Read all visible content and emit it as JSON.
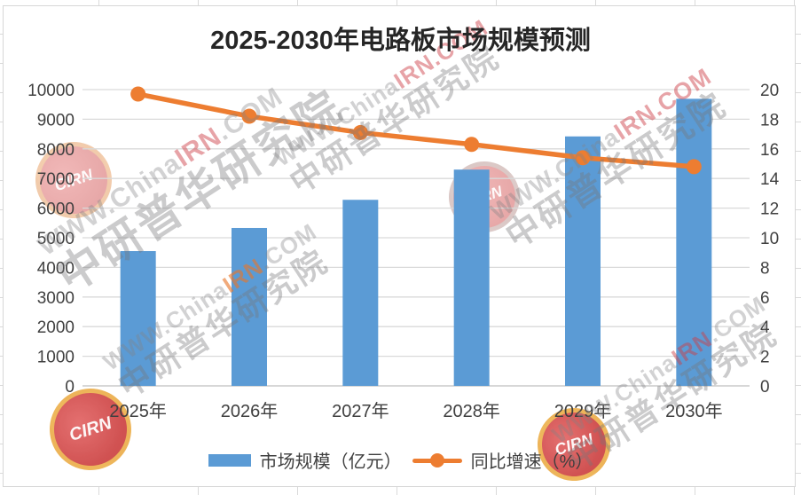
{
  "chart_data": {
    "type": "bar+line",
    "title": "2025-2030年电路板市场规模预测",
    "categories": [
      "2025年",
      "2026年",
      "2027年",
      "2028年",
      "2029年",
      "2030年"
    ],
    "series": [
      {
        "name": "市场规模（亿元）",
        "type": "bar",
        "axis": "left",
        "color": "#5B9BD5",
        "values": [
          4550,
          5330,
          6280,
          7300,
          8420,
          9690
        ]
      },
      {
        "name": "同比增速（%）",
        "type": "line",
        "axis": "right",
        "color": "#ED7D31",
        "values": [
          19.7,
          18.2,
          17.1,
          16.3,
          15.4,
          14.8
        ]
      }
    ],
    "left_axis": {
      "min": 0,
      "max": 10000,
      "step": 1000
    },
    "right_axis": {
      "min": 0,
      "max": 20,
      "step": 2
    },
    "grid": true,
    "legend_position": "bottom",
    "colors": {
      "bar": "#5B9BD5",
      "line": "#ED7D31",
      "gridline": "#D9D9D9",
      "axis_text": "#404040"
    }
  },
  "watermark": {
    "url_prefix": "WWW.China",
    "url_highlight": "IRN",
    "url_suffix": ".COM",
    "cn": "中研普华研究院",
    "logo_text": "CIRN"
  }
}
